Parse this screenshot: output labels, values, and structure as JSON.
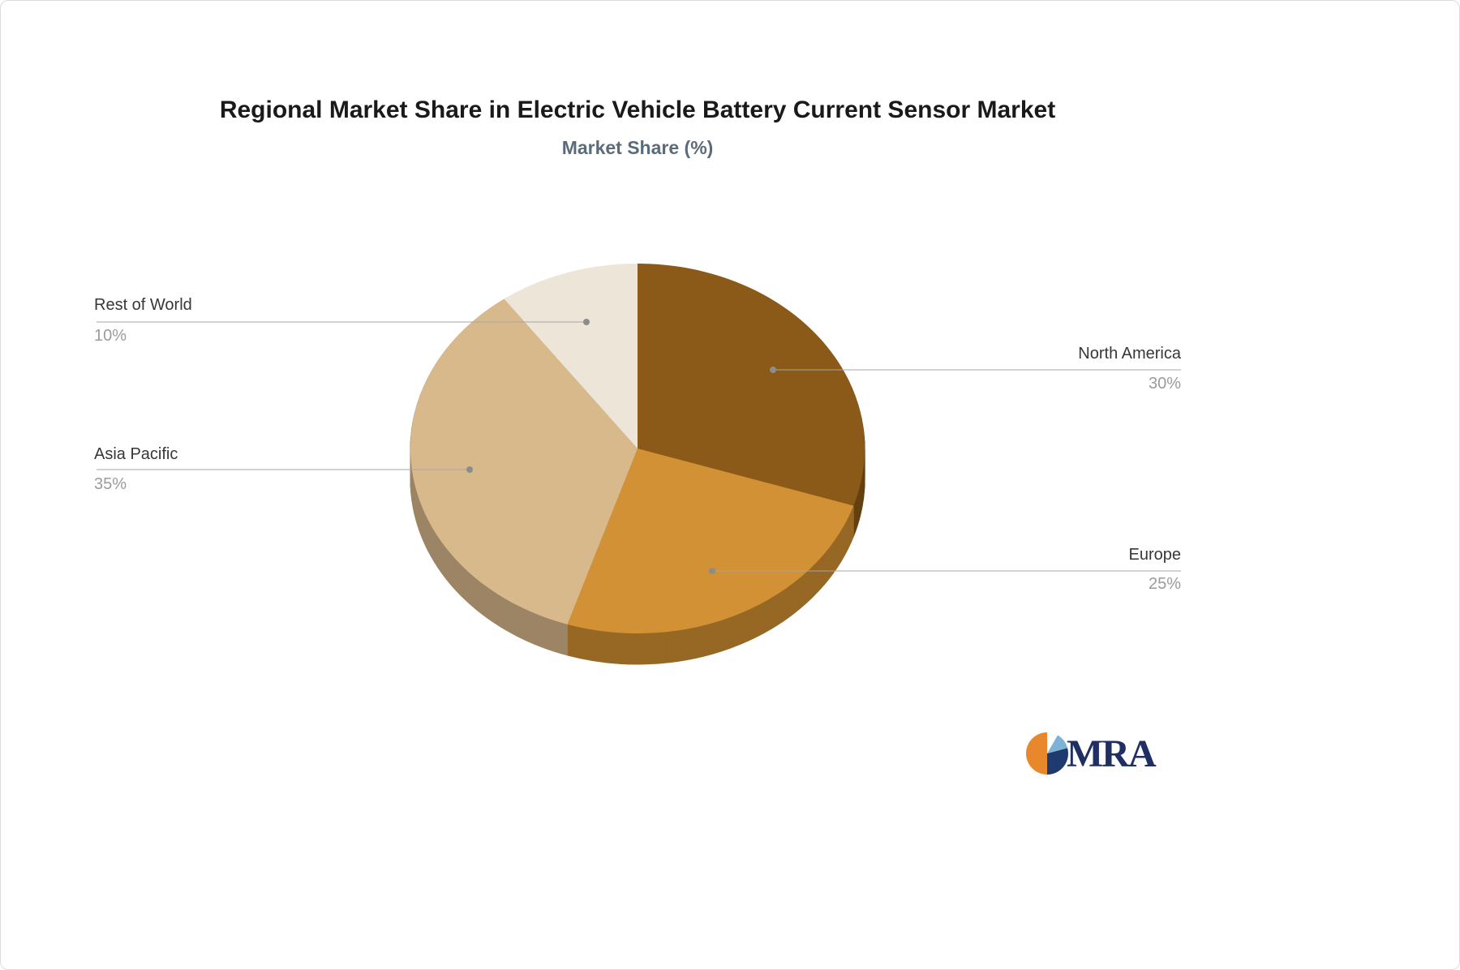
{
  "page": {
    "title": "Regional Market Share in Electric Vehicle Battery Current Sensor Market",
    "subtitle": "Market Share (%)"
  },
  "chart_data": {
    "type": "pie",
    "title": "Regional Market Share in Electric Vehicle Battery Current Sensor Market",
    "subtitle": "Market Share (%)",
    "unit": "%",
    "effect": "3d",
    "start_angle_deg": 0,
    "direction": "clockwise-from-top",
    "legend": "none",
    "labels": [
      "North America",
      "Europe",
      "Asia Pacific",
      "Rest of World"
    ],
    "values": [
      30,
      25,
      35,
      10
    ],
    "slices": [
      {
        "label": "North America",
        "value": 30,
        "display": "30%",
        "color": "#8B5A18"
      },
      {
        "label": "Europe",
        "value": 25,
        "display": "25%",
        "color": "#D29134"
      },
      {
        "label": "Asia Pacific",
        "value": 35,
        "display": "35%",
        "color": "#D8B98C"
      },
      {
        "label": "Rest of World",
        "value": 10,
        "display": "10%",
        "color": "#EDE5D8"
      }
    ]
  },
  "logo": {
    "text": "MRA"
  }
}
